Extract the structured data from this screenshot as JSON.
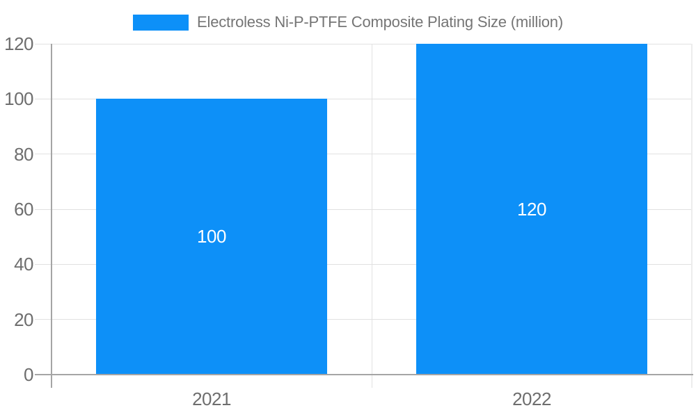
{
  "legend": {
    "label": "Electroless Ni-P-PTFE Composite Plating Size (million)",
    "position": "top"
  },
  "colors": {
    "bar": "#0D90F8",
    "axis": "#A5A5A5",
    "grid": "#E1E1E1",
    "border": "#ECECEC",
    "tick_text": "#6E6E6E",
    "legend_text": "#757575",
    "value_label": "#FFFFFF",
    "background": "#FFFFFF"
  },
  "chart_data": {
    "type": "bar",
    "title": "Electroless Ni-P-PTFE Composite Plating Size (million)",
    "categories": [
      "2021",
      "2022"
    ],
    "series": [
      {
        "name": "Electroless Ni-P-PTFE Composite Plating Size (million)",
        "values": [
          100,
          120
        ]
      }
    ],
    "data_labels": [
      "100",
      "120"
    ],
    "xlabel": "",
    "ylabel": "",
    "ylim": [
      0,
      120
    ],
    "yticks": [
      0,
      20,
      40,
      60,
      80,
      100,
      120
    ],
    "grid": true,
    "legend_position": "top",
    "bar_color": "#0D90F8"
  }
}
